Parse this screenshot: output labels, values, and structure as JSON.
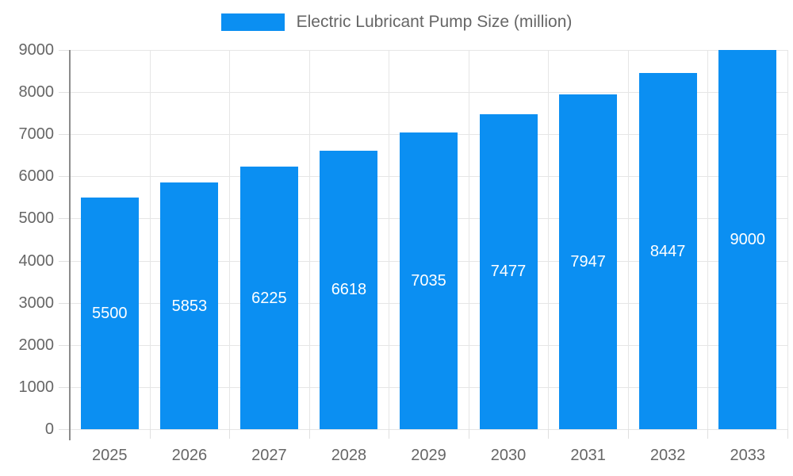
{
  "legend": {
    "label": "Electric Lubricant Pump Size (million)",
    "swatch_color": "#0b8ff2"
  },
  "chart_data": {
    "type": "bar",
    "title": "Electric Lubricant Pump Size (million)",
    "categories": [
      "2025",
      "2026",
      "2027",
      "2028",
      "2029",
      "2030",
      "2031",
      "2032",
      "2033"
    ],
    "values": [
      5500,
      5853,
      6225,
      6618,
      7035,
      7477,
      7947,
      8447,
      9000
    ],
    "xlabel": "",
    "ylabel": "",
    "ylim": [
      0,
      9000
    ],
    "ytick_step": 1000,
    "ytick_labels": [
      "0",
      "1000",
      "2000",
      "3000",
      "4000",
      "5000",
      "6000",
      "7000",
      "8000",
      "9000"
    ],
    "grid": true,
    "legend_position": "top",
    "bar_color": "#0b8ff2",
    "value_label_color": "#ffffff",
    "grid_color": "#e6e6e6",
    "axis_line_color": "#8c8c8c",
    "tick_text_color": "#666666",
    "background_color": "#ffffff"
  }
}
